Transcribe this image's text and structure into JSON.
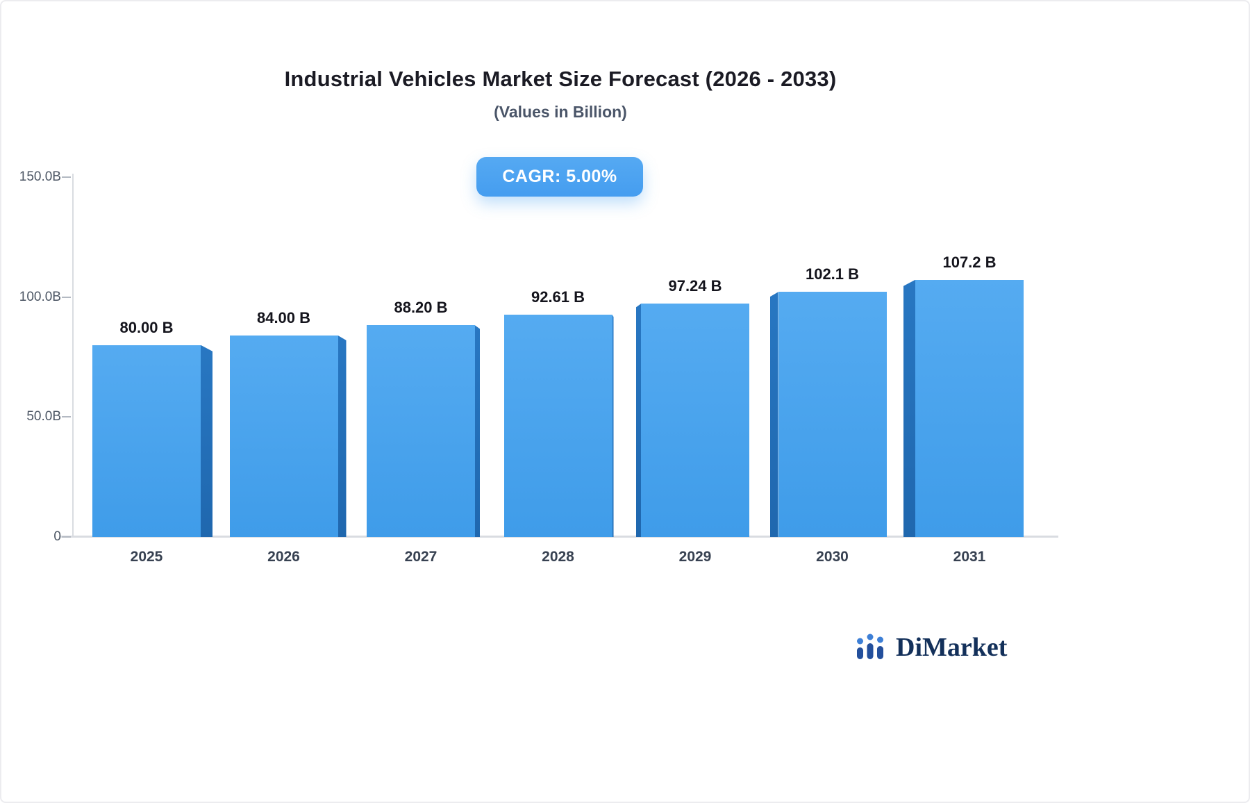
{
  "title": "Industrial Vehicles Market Size Forecast (2026 - 2033)",
  "subtitle": "(Values in Billion)",
  "badge": {
    "label": "CAGR: 5.00%"
  },
  "brand": {
    "name": "DiMarket"
  },
  "chart_data": {
    "type": "bar",
    "title": "Industrial Vehicles Market Size Forecast (2026 - 2033)",
    "subtitle": "(Values in Billion)",
    "categories": [
      "2025",
      "2026",
      "2027",
      "2028",
      "2029",
      "2030",
      "2031"
    ],
    "values": [
      80.0,
      84.0,
      88.2,
      92.61,
      97.24,
      102.1,
      107.2
    ],
    "value_labels": [
      "80.00 B",
      "84.00 B",
      "88.20 B",
      "92.61 B",
      "97.24 B",
      "102.1 B",
      "107.2 B"
    ],
    "xlabel": "",
    "ylabel": "",
    "ylim": [
      0,
      150
    ],
    "yticks": [
      {
        "value": 0,
        "label": "0"
      },
      {
        "value": 50,
        "label": "50.0B"
      },
      {
        "value": 100,
        "label": "100.0B"
      },
      {
        "value": 150,
        "label": "150.0B"
      }
    ],
    "grid": false,
    "legend": "none",
    "bar_color": "#42A0EC",
    "bar_side_color": "#2273BE",
    "cagr": "CAGR: 5.00%"
  }
}
